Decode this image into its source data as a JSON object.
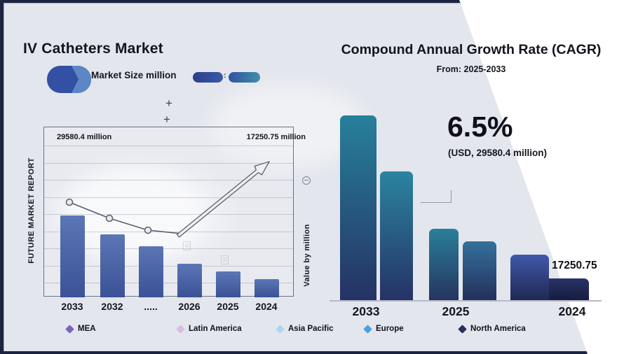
{
  "decor": {
    "plus_marks": [
      "+",
      "+"
    ],
    "pill_separator": ":"
  },
  "legend": {
    "items": [
      {
        "label": "MEA",
        "color": "#7e62c1"
      },
      {
        "label": "Latin America",
        "color": "#dcbbe6"
      },
      {
        "label": "Asia Pacific",
        "color": "#a9d7f0"
      },
      {
        "label": "Europe",
        "color": "#4aa0da"
      },
      {
        "label": "North America",
        "color": "#272f5d"
      }
    ]
  },
  "chart_data": [
    {
      "type": "bar",
      "title": "IV Catheters Market",
      "series_label": "Market Size million",
      "side_label_left": "FUTURE MARKET REPORT",
      "side_label_right": "Value by million",
      "categories": [
        "2033",
        "2032",
        ".....",
        "2026",
        "2025",
        "2024"
      ],
      "values_relative": [
        100,
        77,
        62,
        41,
        32,
        22
      ],
      "annotations": {
        "top_left": "29580.4 million",
        "top_right": "17250.75 million"
      },
      "grid": "horizontal",
      "notes": "decorative declining bars with trend line markers and rising outlined arrow"
    },
    {
      "type": "bar",
      "title": "Compound Annual Growth Rate (CAGR)",
      "subtitle": "From: 2025-2033",
      "cagr": "6.5%",
      "cagr_note": "(USD, 29580.4 million)",
      "data_label": "17250.75",
      "categories": [
        "2033",
        "2025",
        "2024"
      ],
      "groups": [
        {
          "label": "2033",
          "bars": [
            {
              "value_relative": 100,
              "color_top": "#27809b",
              "color_bottom": "#253264"
            },
            {
              "value_relative": 70,
              "color_top": "#2b84a0",
              "color_bottom": "#253264"
            }
          ]
        },
        {
          "label": "2025",
          "bars": [
            {
              "value_relative": 39,
              "color_top": "#2a7f9a",
              "color_bottom": "#26335f"
            },
            {
              "value_relative": 32,
              "color_top": "#34719b",
              "color_bottom": "#242f5c"
            }
          ]
        },
        {
          "label": "2024",
          "bars": [
            {
              "value_relative": 25,
              "color_top": "#4158ab",
              "color_bottom": "#1e2851"
            },
            {
              "value_relative": 12,
              "color_top": "#2a3468",
              "color_bottom": "#151c3e"
            }
          ]
        }
      ]
    }
  ]
}
